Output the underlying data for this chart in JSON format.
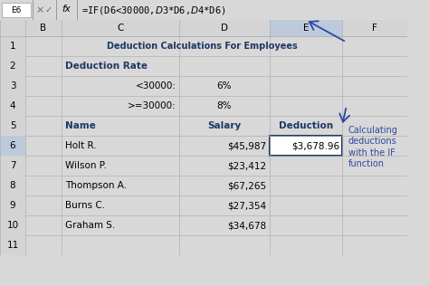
{
  "title": "Deduction Calculations For Employees",
  "formula_bar_text": "=IF(D6<30000,$D$3*D6,$D$4*D6)",
  "formula_cell": "E6",
  "annotation_text": "Calculating\ndeductions\nwith the IF\nfunction",
  "dark_blue": "#1F3864",
  "arrow_blue": "#2E4A9E",
  "header_bg": "#D4D4D4",
  "selected_col_bg": "#BCCADC",
  "grid_color": "#B0B0B0",
  "bg_color": "#FFFFFF",
  "formula_bar_bg": "#F0F0F0",
  "fig_bg": "#D8D8D8",
  "names": [
    "Holt R.",
    "Wilson P.",
    "Thompson A.",
    "Burns C.",
    "Graham S."
  ],
  "salaries": [
    "$45,987",
    "$23,412",
    "$67,265",
    "$27,354",
    "$34,678"
  ],
  "deduction_row6": "$3,678.96"
}
